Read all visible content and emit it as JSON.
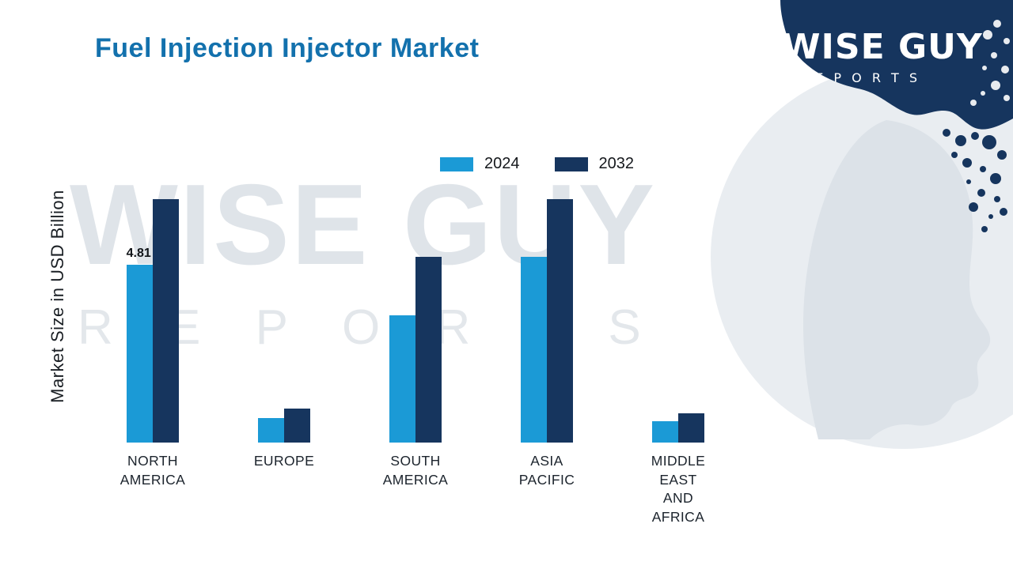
{
  "title": "Fuel Injection Injector Market",
  "y_axis_label": "Market Size in USD Billion",
  "watermark": {
    "line1": "WISE GUY",
    "line2": "R E P O R T S"
  },
  "logo": {
    "line1": "WISE GUY",
    "line2": "R E P O R T S"
  },
  "legend": [
    {
      "label": "2024",
      "color": "#1b9ad6"
    },
    {
      "label": "2032",
      "color": "#16355e"
    }
  ],
  "colors": {
    "title": "#1371ad",
    "bar_2024": "#1b9ad6",
    "bar_2032": "#16355e",
    "logo_background": "#16355e",
    "watermark": "#dfe4e9",
    "background_circle": "#e9edf1"
  },
  "chart_data": {
    "type": "bar",
    "title": "Fuel Injection Injector Market",
    "xlabel": "",
    "ylabel": "Market Size in USD Billion",
    "unit": "USD Billion",
    "categories": [
      "NORTH AMERICA",
      "EUROPE",
      "SOUTH AMERICA",
      "ASIA PACIFIC",
      "MIDDLE EAST AND AFRICA"
    ],
    "category_lines": [
      [
        "NORTH",
        "AMERICA"
      ],
      [
        "EUROPE"
      ],
      [
        "SOUTH",
        "AMERICA"
      ],
      [
        "ASIA",
        "PACIFIC"
      ],
      [
        "MIDDLE",
        "EAST",
        "AND",
        "AFRICA"
      ]
    ],
    "series": [
      {
        "name": "2024",
        "color": "#1b9ad6",
        "values": [
          4.81,
          0.66,
          3.45,
          5.02,
          0.58
        ]
      },
      {
        "name": "2032",
        "color": "#16355e",
        "values": [
          6.58,
          0.92,
          5.02,
          6.58,
          0.79
        ]
      }
    ],
    "ylim": [
      0,
      6.8
    ],
    "grid": false,
    "legend_position": "top",
    "annotations": [
      {
        "text": "4.81",
        "category_index": 0,
        "series_index": 0
      }
    ]
  }
}
